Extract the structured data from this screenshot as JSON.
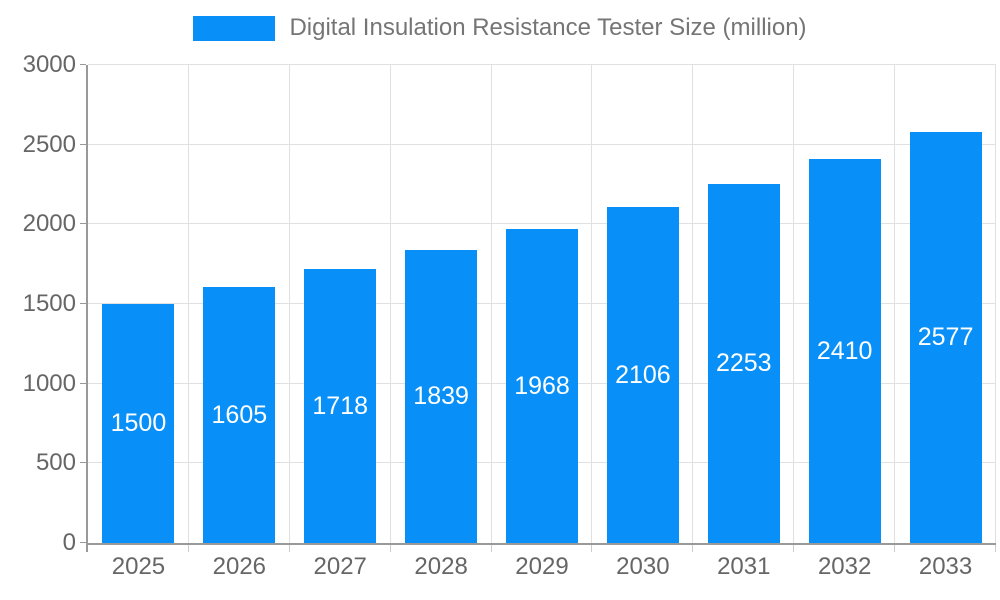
{
  "chart_data": {
    "type": "bar",
    "title": "Digital Insulation Resistance Tester Size (million)",
    "legend_entries": [
      "Digital Insulation Resistance Tester Size (million)"
    ],
    "legend_position": "top",
    "categories": [
      "2025",
      "2026",
      "2027",
      "2028",
      "2029",
      "2030",
      "2031",
      "2032",
      "2033"
    ],
    "values": [
      1500,
      1605,
      1718,
      1839,
      1968,
      2106,
      2253,
      2410,
      2577
    ],
    "xlabel": "",
    "ylabel": "",
    "ylim": [
      0,
      3000
    ],
    "yticks": [
      0,
      500,
      1000,
      1500,
      2000,
      2500,
      3000
    ],
    "grid": true,
    "value_labels": "inside-center",
    "colors": {
      "bar": "#0990F8",
      "grid": "#e0e0e0",
      "axis": "#999999",
      "tick_label": "#666666",
      "legend_text": "#757575",
      "value_label": "#ffffff",
      "background": "#ffffff"
    }
  }
}
